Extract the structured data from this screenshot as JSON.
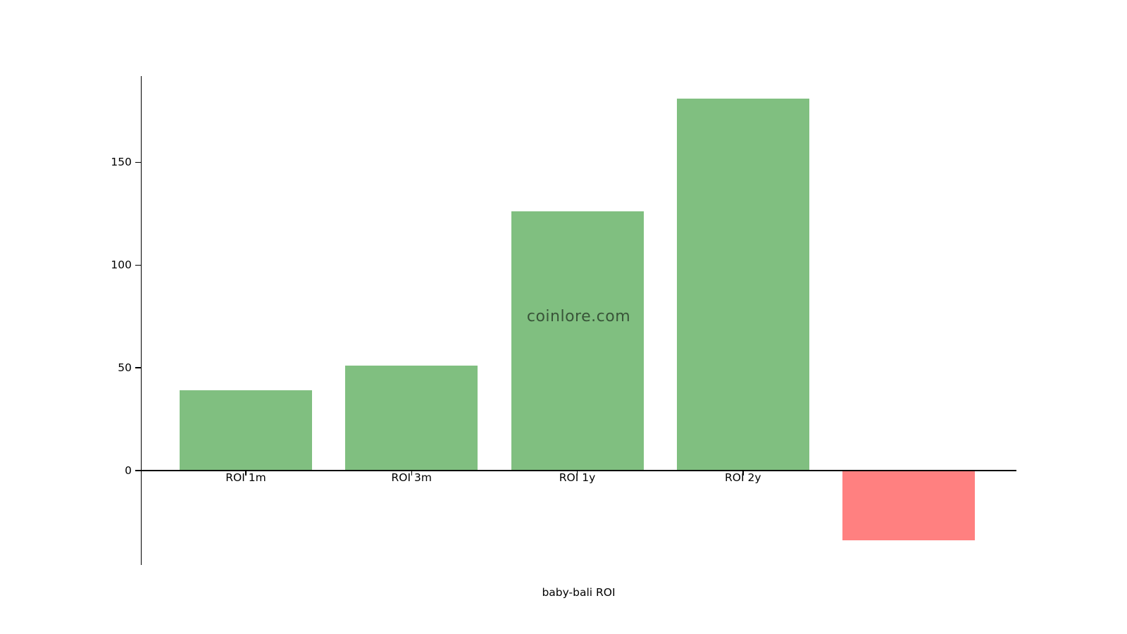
{
  "page": {
    "background": "#ffffff"
  },
  "chart_data": {
    "type": "bar",
    "title": "baby-bali ROI",
    "watermark": "coinlore.com",
    "categories": [
      "ROI 1m",
      "ROI 3m",
      "ROI 1y",
      "ROI 2y",
      ""
    ],
    "values": [
      39,
      51,
      126,
      181,
      -34
    ],
    "series": [
      {
        "name": "baby-bali ROI",
        "values": [
          39,
          51,
          126,
          181,
          -34
        ]
      }
    ],
    "xlabel": "",
    "ylabel": "",
    "yticks": [
      0,
      50,
      100,
      150
    ],
    "ylim": [
      -46,
      192
    ],
    "grid": false,
    "legend_position": "none",
    "colors": {
      "positive_bar": "#80bf80",
      "negative_bar": "#ff8080",
      "axis": "#000000",
      "text": "#000000",
      "watermark_text": "rgba(0,0,0,0.56)",
      "background": "#ffffff"
    }
  }
}
